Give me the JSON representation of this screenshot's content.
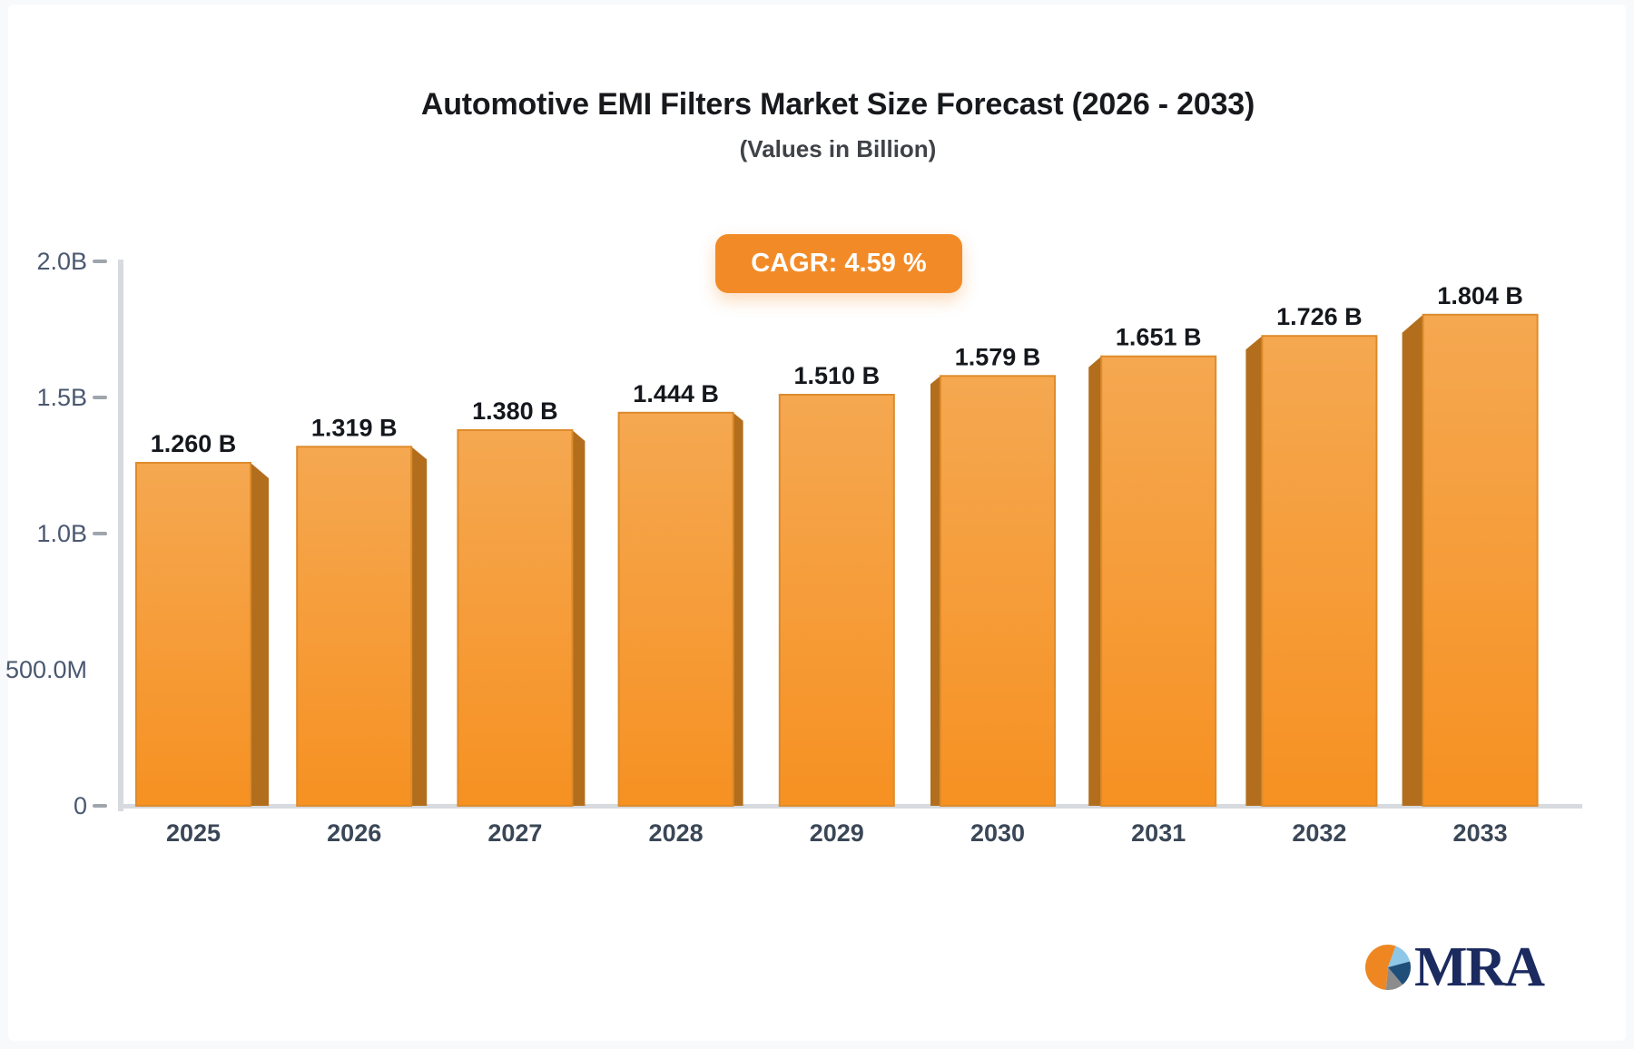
{
  "page": {
    "background": "#f8f9fa",
    "card_background": "#ffffff"
  },
  "header": {
    "title": "Automotive EMI Filters Market Size Forecast (2026 - 2033)",
    "subtitle": "(Values in Billion)"
  },
  "cagr_badge": {
    "label": "CAGR: 4.59 %",
    "bg_color": "#F28B27",
    "text_color": "#FFFFFF"
  },
  "chart_data": {
    "type": "bar",
    "title": "Automotive EMI Filters Market Size Forecast (2026 - 2033)",
    "subtitle": "(Values in Billion)",
    "annotation": "CAGR: 4.59 %",
    "unit": "billion USD",
    "categories": [
      "2025",
      "2026",
      "2027",
      "2028",
      "2029",
      "2030",
      "2031",
      "2032",
      "2033"
    ],
    "values": [
      1.26,
      1.319,
      1.38,
      1.444,
      1.51,
      1.579,
      1.651,
      1.726,
      1.804
    ],
    "bar_labels": [
      "1.260 B",
      "1.319 B",
      "1.380 B",
      "1.444 B",
      "1.510 B",
      "1.579 B",
      "1.651 B",
      "1.726 B",
      "1.804 B"
    ],
    "ylim": [
      0,
      2.0
    ],
    "yticks": [
      {
        "value": 2.0,
        "label": "2.0B",
        "dash": true
      },
      {
        "value": 1.5,
        "label": "1.5B",
        "dash": true
      },
      {
        "value": 1.0,
        "label": "1.0B",
        "dash": true
      },
      {
        "value": 0.5,
        "label": "500.0M",
        "dash": false
      },
      {
        "value": 0,
        "label": "0",
        "dash": true
      }
    ],
    "grid": false,
    "legend": false,
    "style": {
      "bar_fill_top": "#F5A851",
      "bar_fill_bottom": "#F69122",
      "bar_border": "#DE8B2B",
      "bar_side": "#B26E1C",
      "axis_color": "#D7DADE",
      "tick_color": "#9FA5AC",
      "ytick_label_color": "#4A5870",
      "xtick_label_color": "#3A4757",
      "value_label_color": "#14171C"
    }
  },
  "logo": {
    "text": "MRA",
    "text_color": "#1B2A5F",
    "icon": "pie-chart-logo-icon",
    "pie_slice_colors": [
      "#EE8722",
      "#8EC7E8",
      "#1F4E79",
      "#8C8C8C"
    ]
  }
}
